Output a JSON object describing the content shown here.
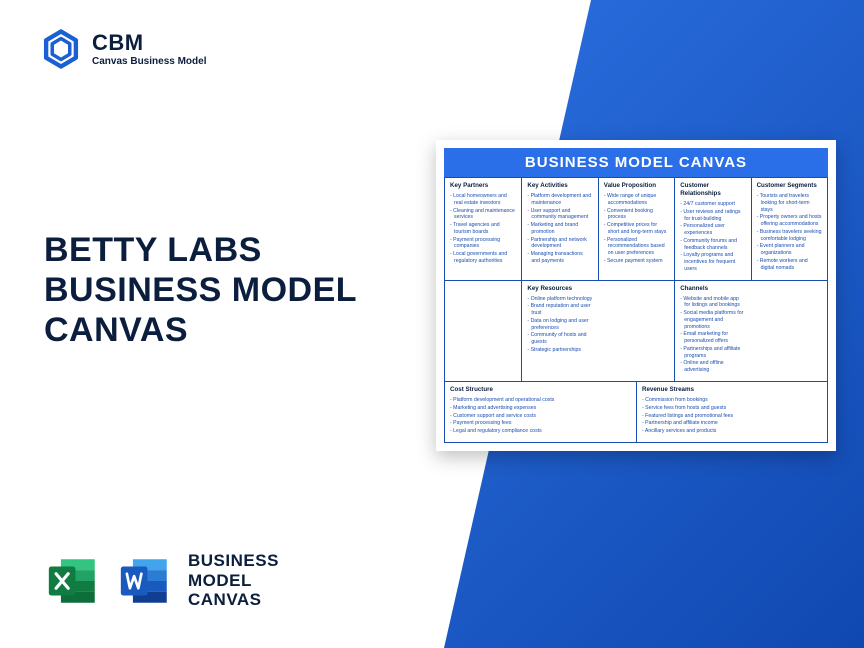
{
  "brand": {
    "acronym": "CBM",
    "sub": "Canvas Business Model",
    "logo_color": "#1a5fd4"
  },
  "title": {
    "line1": "BETTY LABS",
    "line2": "BUSINESS MODEL",
    "line3": "CANVAS",
    "color": "#0b1e3d",
    "fontsize": 34
  },
  "bottom": {
    "line1": "BUSINESS",
    "line2": "MODEL",
    "line3": "CANVAS",
    "excel_colors": {
      "dark": "#107c41",
      "mid": "#21a366",
      "light": "#33c481"
    },
    "word_colors": {
      "dark": "#103f91",
      "mid": "#185abd",
      "light": "#2b7cd3",
      "pale": "#41a5ee"
    }
  },
  "canvas": {
    "header": "BUSINESS MODEL CANVAS",
    "header_bg": "#2b6fe8",
    "border_color": "#1a4db0",
    "text_color": "#1a4db0",
    "heading_color": "#0b1e3d",
    "columns": {
      "key_partners": {
        "title": "Key Partners",
        "items": [
          "Local homeowners and real estate investors",
          "Cleaning and maintenance services",
          "Travel agencies and tourism boards",
          "Payment processing companies",
          "Local governments and regulatory authorities"
        ]
      },
      "key_activities": {
        "title": "Key Activities",
        "items": [
          "Platform development and maintenance",
          "User support and community management",
          "Marketing and brand promotion",
          "Partnership and network development",
          "Managing transactions and payments"
        ]
      },
      "value_proposition": {
        "title": "Value Proposition",
        "items": [
          "Wide range of unique accommodations",
          "Convenient booking process",
          "Competitive prices for short and long-term stays",
          "Personalized recommendations based on user preferences",
          "Secure payment system"
        ]
      },
      "customer_relationships": {
        "title": "Customer Relationships",
        "items": [
          "24/7 customer support",
          "User reviews and ratings for trust-building",
          "Personalized user experiences",
          "Community forums and feedback channels",
          "Loyalty programs and incentives for frequent users"
        ]
      },
      "customer_segments": {
        "title": "Customer Segments",
        "items": [
          "Tourists and travelers looking for short-term stays",
          "Property owners and hosts offering accommodations",
          "Business travelers seeking comfortable lodging",
          "Event planners and organizations",
          "Remote workers and digital nomads"
        ]
      },
      "key_resources": {
        "title": "Key Resources",
        "items": [
          "Online platform technology",
          "Brand reputation and user trust",
          "Data on lodging and user preferences",
          "Community of hosts and guests",
          "Strategic partnerships"
        ]
      },
      "channels": {
        "title": "Channels",
        "items": [
          "Website and mobile app for listings and bookings",
          "Social media platforms for engagement and promotions",
          "Email marketing for personalized offers",
          "Partnerships and affiliate programs",
          "Online and offline advertising"
        ]
      },
      "cost_structure": {
        "title": "Cost Structure",
        "items": [
          "Platform development and operational costs",
          "Marketing and advertising expenses",
          "Customer support and service costs",
          "Payment processing fees",
          "Legal and regulatory compliance costs"
        ]
      },
      "revenue_streams": {
        "title": "Revenue Streams",
        "items": [
          "Commission from bookings",
          "Service fees from hosts and guests",
          "Featured listings and promotional fees",
          "Partnership and affiliate income",
          "Ancillary services and products"
        ]
      }
    }
  },
  "background": {
    "gradient_start": "#2b6fe0",
    "gradient_end": "#1048b0"
  }
}
